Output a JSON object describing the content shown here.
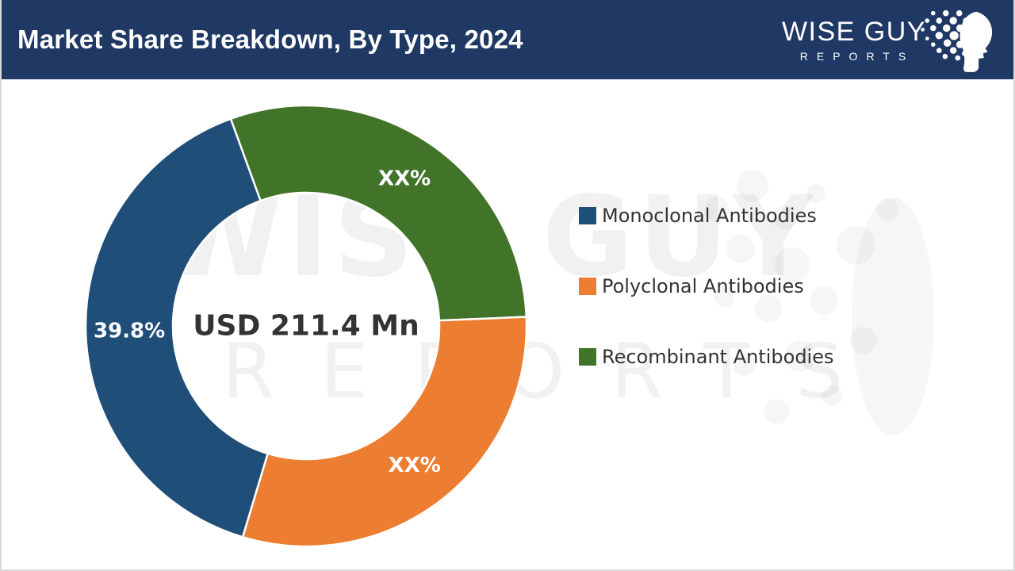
{
  "header": {
    "title": "Market Share Breakdown, By Type, 2024",
    "logo": {
      "name": "WISE GUY",
      "tagline": "REPORTS"
    }
  },
  "watermark": {
    "line1": "WISE GUY",
    "line2": "REPORTS"
  },
  "chart_data": {
    "type": "pie",
    "subtype": "donut",
    "title": "Market Share Breakdown, By Type, 2024",
    "center_label": "USD 211.4 Mn",
    "legend_position": "right",
    "start_angle_deg": 340,
    "draw_order_clockwise": [
      2,
      1,
      0
    ],
    "series": [
      {
        "name": "Monoclonal Antibodies",
        "color": "#1F4E79",
        "displayed_label": "39.8%",
        "value_pct": 39.8
      },
      {
        "name": "Polyclonal Antibodies",
        "color": "#ED7D31",
        "displayed_label": "XX%",
        "value_pct": 30.3
      },
      {
        "name": "Recombinant Antibodies",
        "color": "#417328",
        "displayed_label": "XX%",
        "value_pct": 29.9
      }
    ]
  },
  "colors": {
    "header_bg": "#1F3864",
    "border": "#D9D9D9",
    "slice_label_text": "#FFFFFF",
    "center_text": "#333333",
    "legend_text": "#333333",
    "logo_text": "#FFFFFF"
  }
}
